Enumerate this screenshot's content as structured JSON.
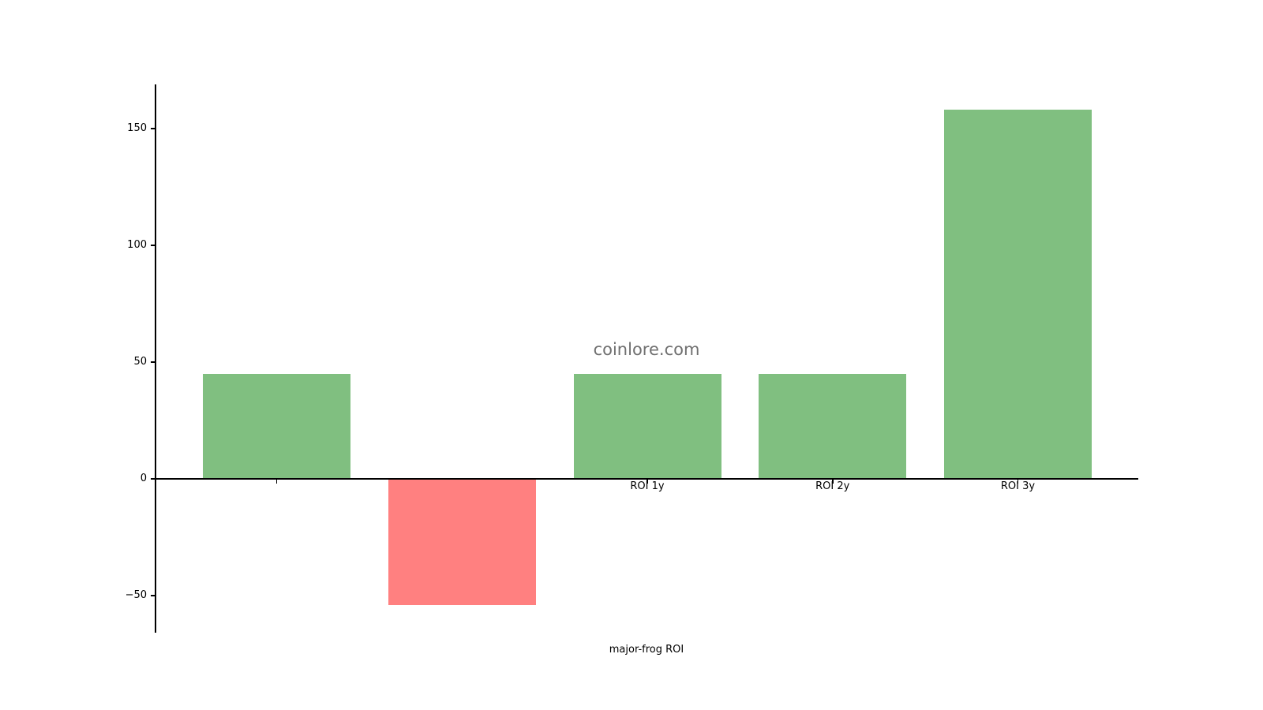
{
  "page": {
    "background": "#ffffff"
  },
  "watermark": {
    "text": "coinlore.com",
    "color": "#707070"
  },
  "chart_data": {
    "type": "bar",
    "title": "",
    "xlabel": "major-frog ROI",
    "ylabel": "",
    "categories": [
      "",
      "",
      "ROI 1y",
      "ROI 2y",
      "ROI 3y"
    ],
    "values": [
      45,
      -54,
      45,
      45,
      158
    ],
    "bar_colors": {
      "positive": "#80bf80",
      "negative": "#ff8080"
    },
    "yticks": [
      150,
      100,
      50,
      0,
      -50
    ],
    "ylim": [
      -66,
      169
    ],
    "grid": false,
    "legend": null
  }
}
